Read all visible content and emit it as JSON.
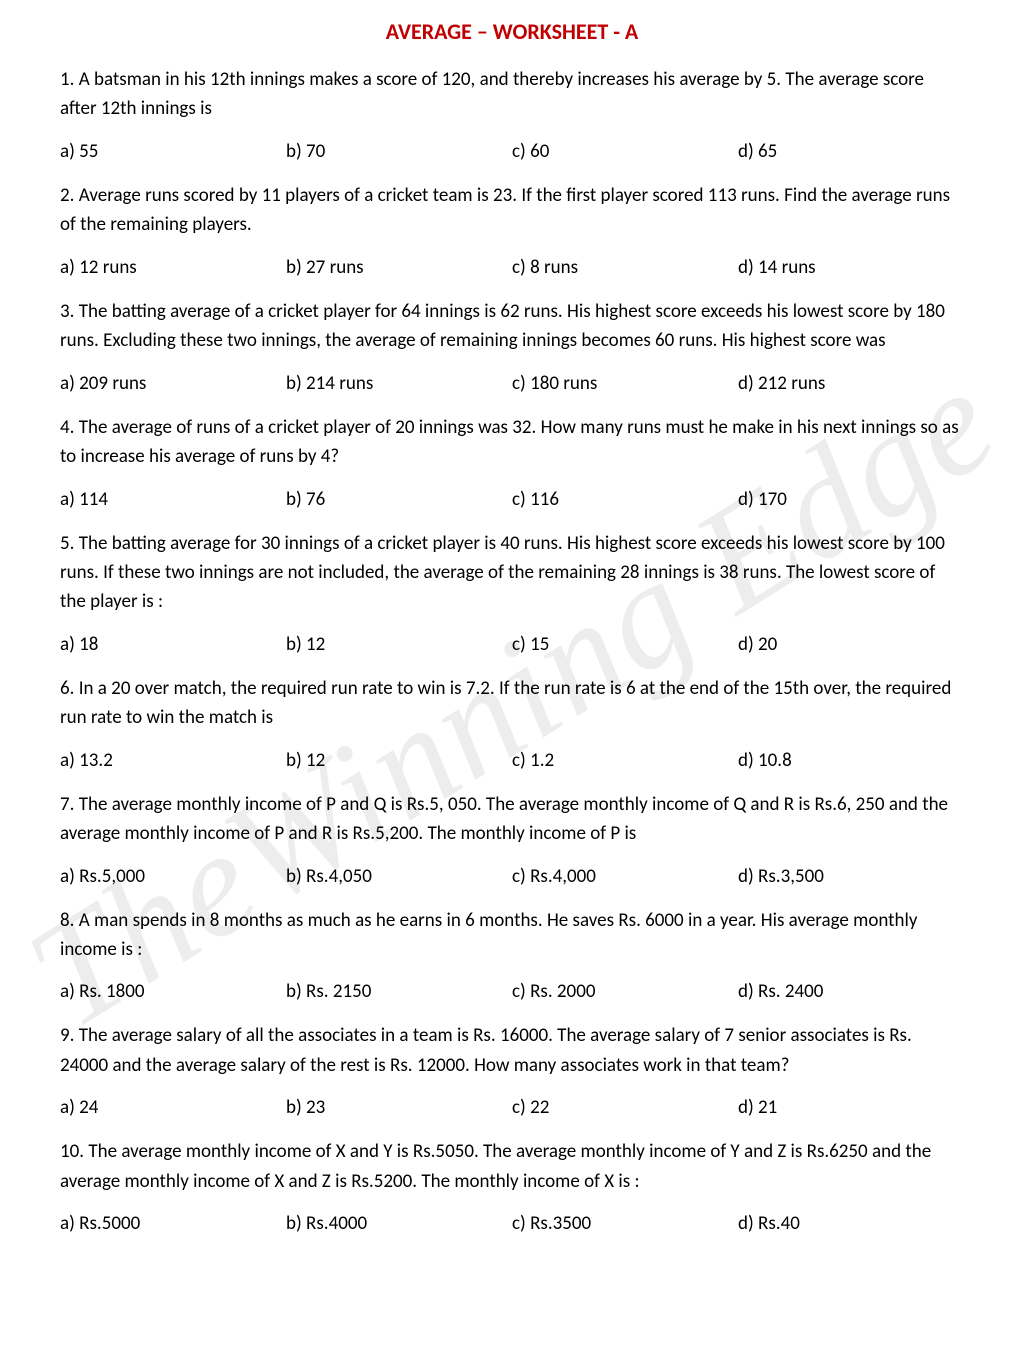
{
  "title": "AVERAGE – WORKSHEET - A",
  "watermark": "TheWinning Edge",
  "questions": [
    {
      "text": "1. A batsman in his 12th innings makes a score of 120, and thereby increases his average by 5. The average score after 12th innings is",
      "options": {
        "a": "a) 55",
        "b": "b) 70",
        "c": "c) 60",
        "d": "d) 65"
      }
    },
    {
      "text": "2. Average runs scored by 11 players of a cricket team is 23. If the first player scored 113 runs. Find the average runs of the remaining players.",
      "options": {
        "a": "a) 12 runs",
        "b": "b) 27 runs",
        "c": "c) 8 runs",
        "d": "d) 14 runs"
      }
    },
    {
      "text": "3. The batting average of a cricket player for 64 innings is 62 runs. His highest score exceeds his lowest score by 180 runs. Excluding these two innings, the average of remaining innings becomes 60 runs. His highest score was",
      "options": {
        "a": "a) 209 runs",
        "b": "b) 214 runs",
        "c": "c) 180 runs",
        "d": "d) 212 runs"
      }
    },
    {
      "text": "4. The average of runs of a cricket player of 20 innings was 32. How many runs must he make in his next innings so as to increase his average of runs by 4?",
      "options": {
        "a": "a) 114",
        "b": "b) 76",
        "c": "c) 116",
        "d": "d) 170"
      }
    },
    {
      "text": "5. The batting average for 30 innings of a cricket player is 40 runs. His highest score exceeds his lowest score by 100 runs. If these two innings are not included, the average of the remaining 28 innings is 38 runs. The lowest score of the player is :",
      "options": {
        "a": "a) 18",
        "b": "b) 12",
        "c": "c) 15",
        "d": "d) 20"
      }
    },
    {
      "text": "6. In a 20 over match, the required run rate to win is 7.2. If the run rate is 6 at the end of the 15th over, the required run rate to win the match is",
      "options": {
        "a": "a) 13.2",
        "b": "b) 12",
        "c": "c) 1.2",
        "d": "d) 10.8"
      }
    },
    {
      "text": "7. The average monthly income of P and Q is Rs.5, 050. The average monthly income of Q and R is Rs.6, 250 and the average monthly income of P and R is Rs.5,200. The monthly income of P is",
      "options": {
        "a": "a) Rs.5,000",
        "b": "b) Rs.4,050",
        "c": "c) Rs.4,000",
        "d": "d) Rs.3,500"
      }
    },
    {
      "text": "8. A man spends in 8 months as much as he earns in 6 months. He saves Rs. 6000 in a year. His average monthly income is :",
      "options": {
        "a": "a) Rs. 1800",
        "b": "b) Rs. 2150",
        "c": "c) Rs. 2000",
        "d": "d) Rs. 2400"
      }
    },
    {
      "text": "9. The average salary of all the associates in a team is Rs. 16000. The average salary of 7 senior associates is Rs. 24000 and the average salary of the rest is Rs. 12000. How many associates work in that team?",
      "options": {
        "a": "a) 24",
        "b": "b) 23",
        "c": "c) 22",
        "d": "d) 21"
      }
    },
    {
      "text": "10. The average monthly income of X and Y is Rs.5050. The average monthly income of Y and Z is Rs.6250 and the average monthly income of X and Z is Rs.5200. The monthly income of X is :",
      "options": {
        "a": "a) Rs.5000",
        "b": "b) Rs.4000",
        "c": "c) Rs.3500",
        "d": "d) Rs.40"
      }
    }
  ]
}
